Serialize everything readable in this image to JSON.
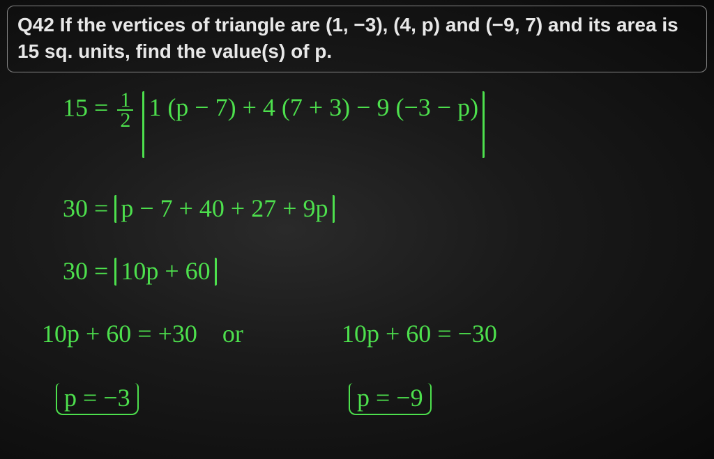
{
  "colors": {
    "background_center": "#2a2a2a",
    "background_edge": "#0a0a0a",
    "question_text": "#e8e8e8",
    "question_border": "#888888",
    "ink": "#4de04d"
  },
  "question": {
    "label": "Q42",
    "text": "If the vertices of triangle are (1, −3), (4, p) and (−9, 7) and its area is 15 sq. units, find the value(s) of p."
  },
  "work": {
    "line1": {
      "lhs": "15 =",
      "frac_num": "1",
      "frac_den": "2",
      "abs_inner": "1 (p − 7) + 4 (7 + 3) − 9 (−3 − p)"
    },
    "line2": {
      "lhs": "30 =",
      "abs_inner": "p − 7 + 40 + 27 + 9p"
    },
    "line3": {
      "lhs": "30 =",
      "abs_inner": "10p + 60"
    },
    "line4": {
      "left": "10p + 60 = +30",
      "or": "or",
      "right": "10p + 60 = −30"
    },
    "line5": {
      "left": "p = −3",
      "right": "p = −9"
    }
  }
}
